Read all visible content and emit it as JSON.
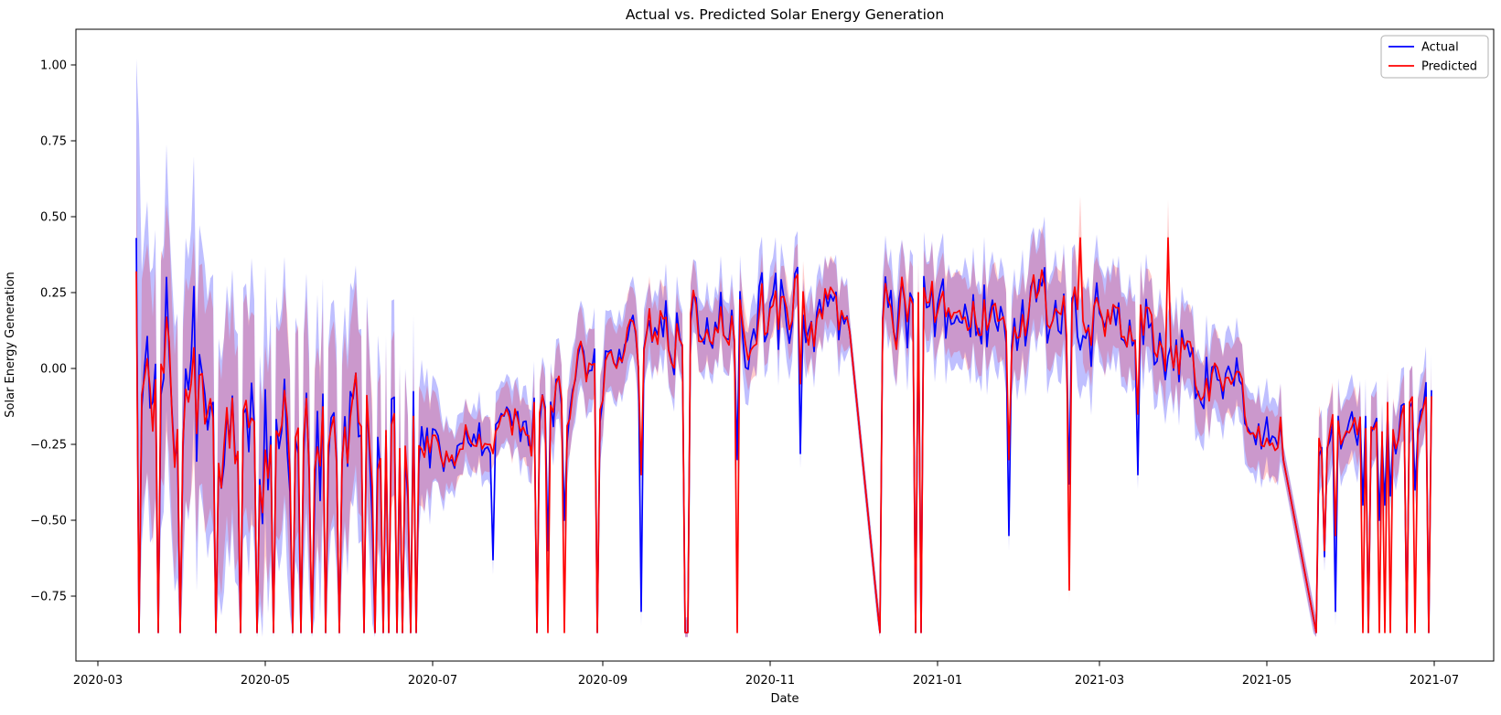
{
  "figure": {
    "background": "#ffffff"
  },
  "chart_data": {
    "type": "line",
    "title": "Actual vs. Predicted Solar Energy Generation",
    "xlabel": "Date",
    "ylabel": "Solar Energy Generation",
    "x_tick_labels": [
      "2020-03",
      "2020-05",
      "2020-07",
      "2020-09",
      "2020-11",
      "2021-01",
      "2021-03",
      "2021-05",
      "2021-07"
    ],
    "x_tick_days": [
      -14,
      47,
      108,
      170,
      231,
      292,
      351,
      412,
      473
    ],
    "y_tick_values": [
      1.0,
      0.75,
      0.5,
      0.25,
      0.0,
      -0.25,
      -0.5,
      -0.75
    ],
    "y_tick_labels": [
      "1.00",
      "0.75",
      "0.50",
      "0.25",
      "0.00",
      "−0.25",
      "−0.50",
      "−0.75"
    ],
    "ylim": [
      -0.964,
      1.117
    ],
    "x_start_date": "2020-03-15",
    "x_end_date": "2021-06-30",
    "n_points": 473,
    "grid": false,
    "legend": {
      "position": "upper right",
      "entries": [
        {
          "label": "Actual",
          "color": "#0000ff"
        },
        {
          "label": "Predicted",
          "color": "#ff0000"
        }
      ]
    },
    "series_style": [
      {
        "name": "Actual",
        "line_color": "#0000ff",
        "band_color": "#0000ff",
        "band_opacity": 0.25,
        "line_width": 1.7
      },
      {
        "name": "Predicted",
        "line_color": "#ff0000",
        "band_color": "#ff0000",
        "band_opacity": 0.2,
        "line_width": 1.7
      }
    ],
    "synthesis": {
      "seed": 7,
      "floor": -0.87,
      "band_floor": -0.885,
      "clamp_max": 0.43,
      "line_jitter": 0.35,
      "pred_band_scale": 0.85,
      "dip_band": 0.05,
      "trend": [
        [
          0,
          -0.05
        ],
        [
          20,
          -0.18
        ],
        [
          50,
          -0.28
        ],
        [
          90,
          -0.3
        ],
        [
          110,
          -0.3
        ],
        [
          125,
          -0.22
        ],
        [
          140,
          -0.18
        ],
        [
          160,
          -0.05
        ],
        [
          185,
          0.08
        ],
        [
          210,
          0.12
        ],
        [
          240,
          0.2
        ],
        [
          258,
          0.15
        ],
        [
          275,
          0.22
        ],
        [
          300,
          0.16
        ],
        [
          330,
          0.14
        ],
        [
          360,
          0.16
        ],
        [
          380,
          0.05
        ],
        [
          400,
          -0.08
        ],
        [
          420,
          -0.22
        ],
        [
          440,
          -0.22
        ],
        [
          460,
          -0.18
        ],
        [
          472,
          -0.1
        ]
      ],
      "noise": [
        [
          0,
          0.26
        ],
        [
          30,
          0.24
        ],
        [
          60,
          0.22
        ],
        [
          95,
          0.2
        ],
        [
          115,
          0.07
        ],
        [
          135,
          0.08
        ],
        [
          160,
          0.11
        ],
        [
          200,
          0.12
        ],
        [
          250,
          0.11
        ],
        [
          300,
          0.12
        ],
        [
          350,
          0.12
        ],
        [
          400,
          0.1
        ],
        [
          440,
          0.09
        ],
        [
          472,
          0.08
        ]
      ],
      "band": [
        [
          0,
          0.45
        ],
        [
          30,
          0.42
        ],
        [
          60,
          0.4
        ],
        [
          95,
          0.32
        ],
        [
          115,
          0.1
        ],
        [
          135,
          0.11
        ],
        [
          160,
          0.14
        ],
        [
          200,
          0.12
        ],
        [
          250,
          0.12
        ],
        [
          290,
          0.15
        ],
        [
          330,
          0.17
        ],
        [
          370,
          0.15
        ],
        [
          410,
          0.13
        ],
        [
          472,
          0.12
        ]
      ],
      "dips_both": [
        1,
        8,
        16,
        29,
        38,
        44,
        50,
        57,
        60,
        64,
        69,
        74,
        83,
        87,
        90,
        92,
        95,
        97,
        100,
        102,
        146,
        168,
        200,
        201,
        284,
        286,
        449,
        463,
        471
      ],
      "dips_red": [
        {
          "d": 150,
          "blue": -0.6
        },
        {
          "d": 156,
          "blue": -0.5
        },
        {
          "d": 219,
          "blue": -0.3
        },
        {
          "d": 340,
          "val": -0.73,
          "blue": -0.38
        },
        {
          "d": 447,
          "blue": -0.45
        },
        {
          "d": 453,
          "blue": -0.5
        },
        {
          "d": 455,
          "blue": -0.45
        },
        {
          "d": 457,
          "blue": -0.42
        },
        {
          "d": 466,
          "blue": -0.4
        }
      ],
      "dips_blue": [
        {
          "d": 130,
          "val": -0.63,
          "red": -0.28
        },
        {
          "d": 184,
          "val": -0.8,
          "red": -0.35
        },
        {
          "d": 242,
          "val": -0.28,
          "red": -0.05
        },
        {
          "d": 318,
          "val": -0.55,
          "red": -0.3
        },
        {
          "d": 365,
          "val": -0.35,
          "red": -0.15
        },
        {
          "d": 433,
          "val": -0.62,
          "red": -0.6
        },
        {
          "d": 437,
          "val": -0.8,
          "red": -0.55
        }
      ],
      "ramps": [
        {
          "start": 260,
          "end": 271,
          "from": 0.12
        },
        {
          "start": 418,
          "end": 430,
          "from": -0.3
        }
      ],
      "up_spikes": [
        {
          "d": 0,
          "a": 0.43,
          "p": 0.32
        },
        {
          "d": 11,
          "a": 0.3
        },
        {
          "d": 21,
          "a": 0.27
        },
        {
          "d": 344,
          "p": 0.48
        },
        {
          "d": 376,
          "p": 0.46
        }
      ],
      "band_overrides": [
        {
          "d": 0,
          "a_up": 1.02,
          "p_up": 0.85
        },
        {
          "d": 1,
          "a_up": 0.8
        }
      ]
    }
  }
}
